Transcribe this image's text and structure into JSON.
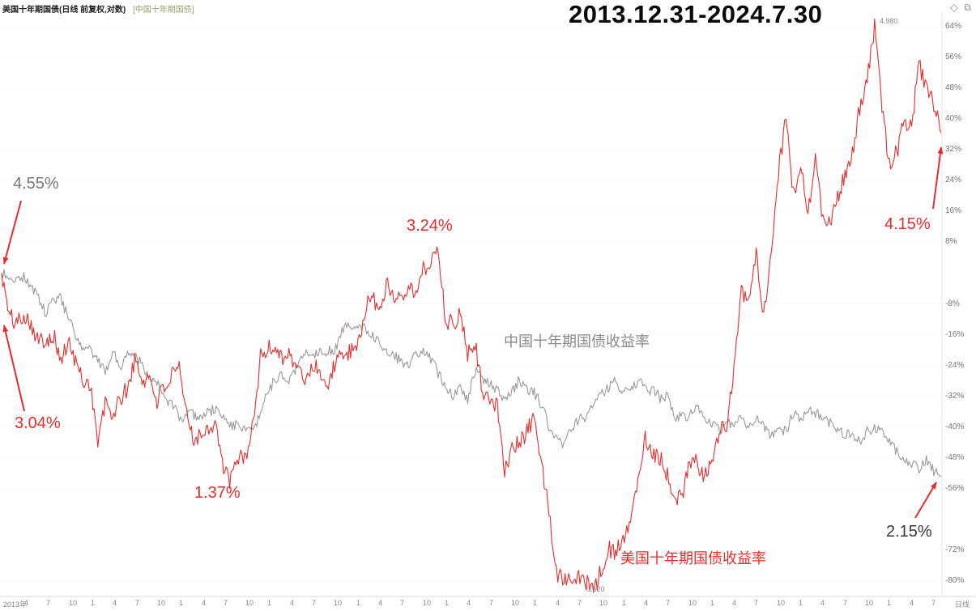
{
  "header": {
    "left_title": "美国十年期国债(日线 前复权,对数)",
    "left_sub": "[中国十年期国债]",
    "icons": {
      "diamond": "◇",
      "panel": "⧉"
    }
  },
  "colors": {
    "us_line": "#e62e2e",
    "china_line": "#9a9a9a",
    "annotation_red": "#e62e2e",
    "grid": "#ededed",
    "axis_text": "#777777"
  },
  "annotations": {
    "china_start": "4.55%",
    "us_start": "3.04%",
    "us_low_2016": "1.37%",
    "us_peak_2018": "3.24%",
    "us_end": "4.15%",
    "china_end": "2.15%",
    "us_peak_value": "4.980",
    "us_low_value": "0.520",
    "china_line_label": "中国十年期国债收益率",
    "us_line_label": "美国十年期国债收益率"
  },
  "chart_data": {
    "type": "line",
    "title": "2013.12.31-2024.7.30",
    "xlabel": "",
    "ylabel": "",
    "x_start_label": "2013年",
    "period_label": "日线",
    "x_tick_labels": [
      "4",
      "7",
      "10",
      "1",
      "4",
      "7",
      "10",
      "1",
      "4",
      "7",
      "10",
      "1",
      "4",
      "7",
      "10",
      "1",
      "4",
      "7",
      "10",
      "1",
      "4",
      "7",
      "10",
      "1",
      "4",
      "7",
      "10",
      "1",
      "4",
      "7",
      "10",
      "1",
      "4",
      "7",
      "10",
      "1",
      "4",
      "7",
      "10",
      "1",
      "4",
      "7"
    ],
    "y_axis": {
      "unit": "%",
      "labels": [
        "64%",
        "56%",
        "48%",
        "40%",
        "32%",
        "24%",
        "16%",
        "8%",
        "-8%",
        "-16%",
        "-24%",
        "-32%",
        "-40%",
        "-48%",
        "-56%",
        "-72%",
        "-80%"
      ],
      "values": [
        64,
        56,
        48,
        40,
        32,
        24,
        16,
        8,
        -8,
        -16,
        -24,
        -32,
        -40,
        -48,
        -56,
        -72,
        -80
      ],
      "min": -84,
      "max": 66
    },
    "x_range": [
      "2013.12.31",
      "2024.7.30"
    ],
    "sampling": "monthly percent change vs 2013.12.31 baseline",
    "series": [
      {
        "name": "美国十年期国债收益率",
        "color": "#e62e2e",
        "baseline_yield": "3.04%",
        "end_yield": "4.15%",
        "values_pct_change": [
          0,
          -11,
          -13,
          -10.5,
          -13,
          -18,
          -17,
          -16,
          -23,
          -18,
          -23,
          -28,
          -28.6,
          -44,
          -34,
          -37,
          -33,
          -30,
          -22.7,
          -28,
          -27,
          -33,
          -29.6,
          -27,
          -25.3,
          -36.8,
          -42.8,
          -41.8,
          -39.8,
          -39,
          -51.6,
          -53.9,
          -48,
          -47.4,
          -39.8,
          -21.7,
          -19.7,
          -19.4,
          -21.4,
          -21.4,
          -25,
          -27.6,
          -24.3,
          -24.7,
          -30.3,
          -23.4,
          -21.7,
          -20.4,
          -21.1,
          -10.5,
          -5.9,
          -9.9,
          -3,
          -5.9,
          -5.9,
          -2.6,
          -5.9,
          0.7,
          3.3,
          6.6,
          -11.8,
          -13.5,
          -10.5,
          -20.7,
          -17.8,
          -30.3,
          -34.2,
          -33.9,
          -50.7,
          -45.4,
          -44.4,
          -41.4,
          -36.8,
          -50.3,
          -62.2,
          -78,
          -79,
          -78.6,
          -78.3,
          -80,
          -82.9,
          -77.6,
          -71.4,
          -72.4,
          -69.7,
          -64.8,
          -52.6,
          -42.8,
          -46.4,
          -48,
          -52.3,
          -59.2,
          -57.2,
          -50,
          -49,
          -53,
          -50,
          -41.1,
          -39.8,
          -23.7,
          -4.9,
          -6.3,
          5,
          -12.2,
          3.6,
          26,
          39.8,
          21,
          27.6,
          15.8,
          28.9,
          14.5,
          13.2,
          19.7,
          25.3,
          30.6,
          42.8,
          51,
          63.8,
          43.8,
          27.6,
          31.3,
          39.8,
          38.2,
          53.9,
          48.4,
          43.4,
          36.5
        ]
      },
      {
        "name": "中国十年期国债收益率",
        "color": "#9a9a9a",
        "baseline_yield": "4.55%",
        "end_yield": "2.15%",
        "values_pct_change": [
          0,
          -1.1,
          -1.5,
          -1.1,
          -3.3,
          -6.6,
          -10.8,
          -6.6,
          -6.6,
          -11.6,
          -16.5,
          -20.4,
          -19.8,
          -23.1,
          -25.7,
          -20.2,
          -24.4,
          -20.9,
          -20.9,
          -23.7,
          -26.8,
          -28.4,
          -33,
          -33.4,
          -38,
          -37.1,
          -36.7,
          -37.4,
          -36,
          -35.4,
          -37.6,
          -39.3,
          -39.8,
          -40.2,
          -41.8,
          -36.5,
          -30.5,
          -27.7,
          -26.8,
          -27.7,
          -24,
          -20.4,
          -21.5,
          -20,
          -20.2,
          -20.4,
          -14.5,
          -14.1,
          -14.3,
          -13.8,
          -16,
          -17.8,
          -20.4,
          -20.7,
          -23.5,
          -24,
          -20.9,
          -20.2,
          -22.4,
          -25.9,
          -29,
          -31.9,
          -30.1,
          -32.5,
          -25.1,
          -27.5,
          -29,
          -30.3,
          -32.7,
          -31,
          -27.5,
          -30.3,
          -31,
          -34.3,
          -40,
          -43.1,
          -44.2,
          -40.7,
          -38,
          -37.1,
          -34.1,
          -31.2,
          -29.9,
          -28.1,
          -30.8,
          -30.1,
          -27.9,
          -29.9,
          -30.5,
          -32.3,
          -32.3,
          -37.6,
          -37.4,
          -36.9,
          -34.7,
          -37.1,
          -38.9,
          -40.7,
          -38.9,
          -38.7,
          -37.6,
          -39.8,
          -38,
          -39.3,
          -42.4,
          -39.3,
          -41.5,
          -36.5,
          -37.6,
          -35.6,
          -36.3,
          -37.4,
          -38.9,
          -40.9,
          -42,
          -41.5,
          -43.7,
          -41.1,
          -40.4,
          -41.3,
          -43.7,
          -46.6,
          -48.6,
          -49.7,
          -51,
          -48.4,
          -51.4,
          -52.7
        ]
      }
    ]
  }
}
